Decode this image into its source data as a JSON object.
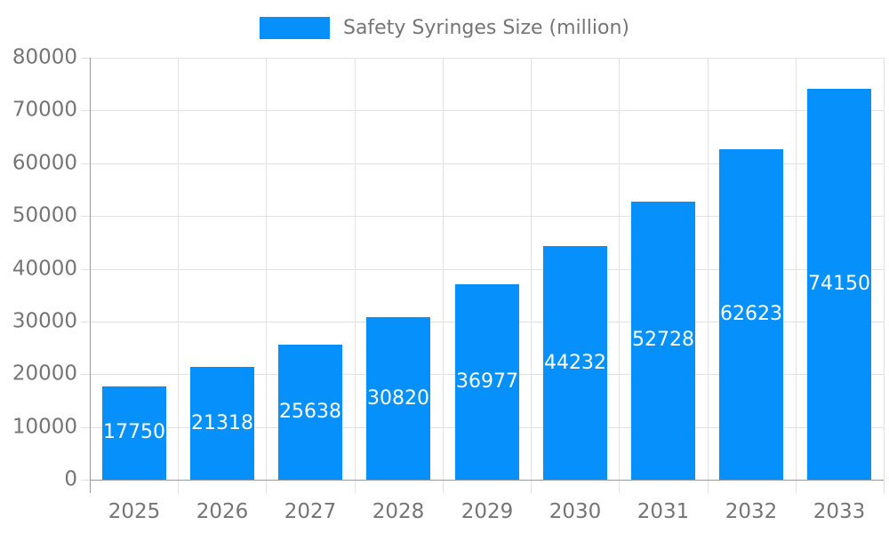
{
  "legend": {
    "label": "Safety Syringes Size (million)"
  },
  "colors": {
    "bar": "#0590FC",
    "axis_line": "#999999",
    "grid_line": "#e2e2e2",
    "tick_text": "#757575",
    "value_label": "#ffffff",
    "background": "#ffffff"
  },
  "chart_data": {
    "type": "bar",
    "title": "Safety Syringes Size (million)",
    "series_name": "Safety Syringes Size (million)",
    "categories": [
      "2025",
      "2026",
      "2027",
      "2028",
      "2029",
      "2030",
      "2031",
      "2032",
      "2033"
    ],
    "values": [
      17750,
      21318,
      25638,
      30820,
      36977,
      44232,
      52728,
      62623,
      74150
    ],
    "value_labels": [
      "17750",
      "21318",
      "25638",
      "30820",
      "36977",
      "44232",
      "52728",
      "62623",
      "74150"
    ],
    "xlabel": "",
    "ylabel": "",
    "ylim": [
      0,
      80000
    ],
    "ytick_step": 10000,
    "ytick_labels": [
      "0",
      "10000",
      "20000",
      "30000",
      "40000",
      "50000",
      "60000",
      "70000",
      "80000"
    ],
    "grid": true,
    "legend_position": "top",
    "bar_color": "#0590FC",
    "value_label_position": "center-inside"
  }
}
